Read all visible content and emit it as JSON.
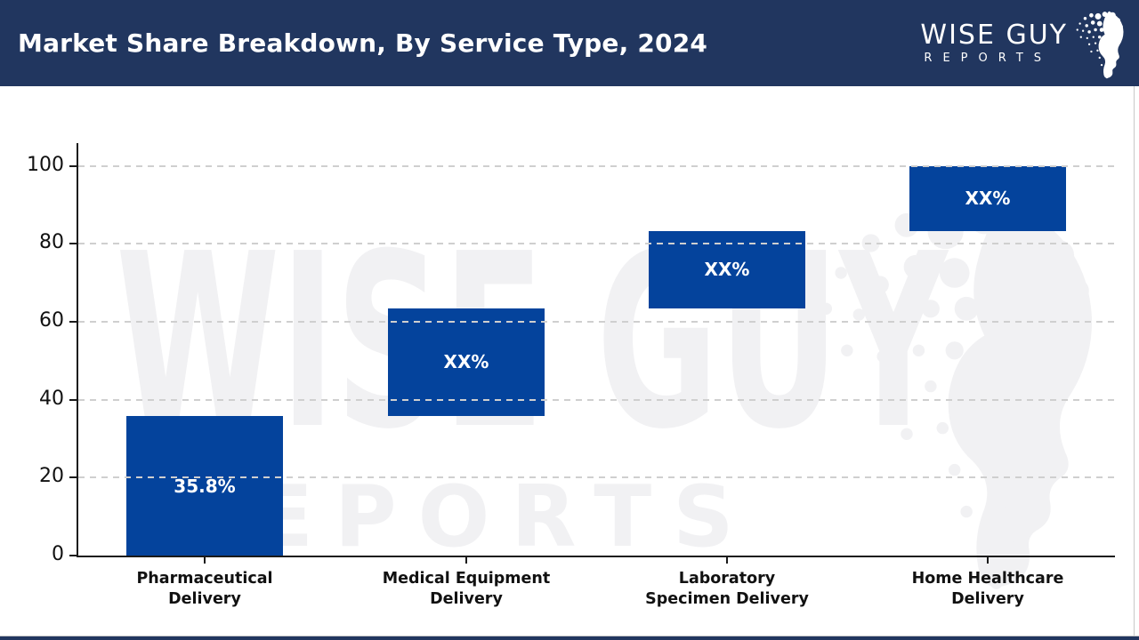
{
  "header": {
    "title": "Market Share Breakdown, By Service Type, 2024",
    "logo": {
      "name": "WISE GUY",
      "subtitle": "REPORTS"
    }
  },
  "watermark": {
    "wordmark": "WISE GUY",
    "reports": "REPORTS"
  },
  "chart_data": {
    "type": "bar",
    "subtype": "waterfall",
    "title": "Market Share Breakdown, By Service Type, 2024",
    "categories": [
      "Pharmaceutical\nDelivery",
      "Medical Equipment\nDelivery",
      "Laboratory\nSpecimen Delivery",
      "Home Healthcare\nDelivery"
    ],
    "segments": [
      {
        "category": "Pharmaceutical Delivery",
        "start": 0,
        "end": 35.8,
        "label": "35.8%"
      },
      {
        "category": "Medical Equipment Delivery",
        "start": 35.8,
        "end": 63.5,
        "label": "XX%"
      },
      {
        "category": "Laboratory Specimen Delivery",
        "start": 63.5,
        "end": 83.2,
        "label": "XX%"
      },
      {
        "category": "Home Healthcare Delivery",
        "start": 83.2,
        "end": 100,
        "label": "XX%"
      }
    ],
    "ylim": [
      0,
      100
    ],
    "yticks": [
      0,
      20,
      40,
      60,
      80,
      100
    ],
    "grid": "dashed horizontal gridlines drawn over bars",
    "legend": null,
    "bar_color": "#04439C",
    "bar_label_color": "#FFFFFF"
  },
  "colors": {
    "header_bg": "#21365F",
    "bar": "#04439C",
    "gridline": "#CFCFCF",
    "axis": "#1A1A1A",
    "watermark": "#F1F1F3"
  }
}
